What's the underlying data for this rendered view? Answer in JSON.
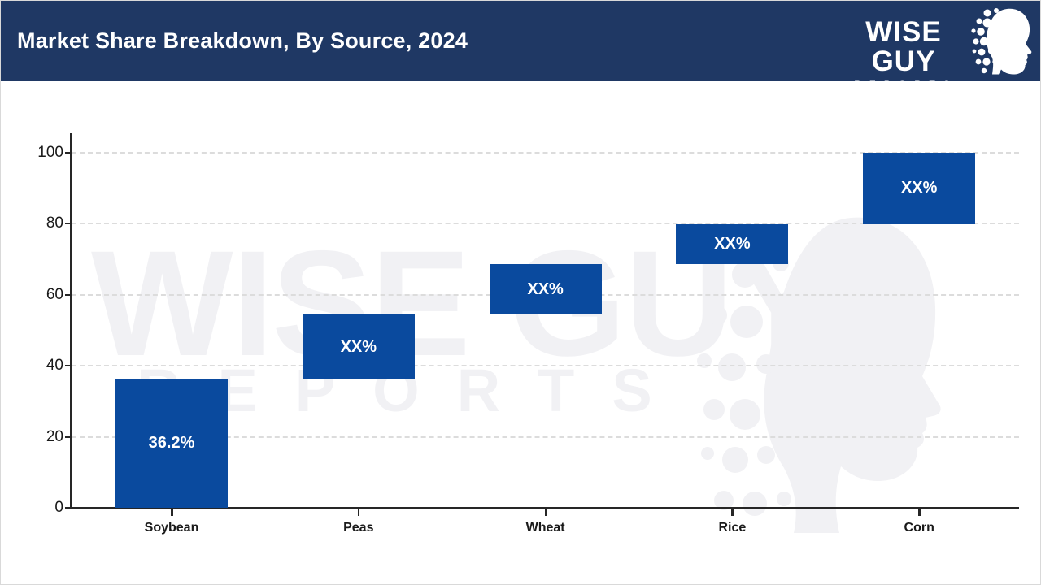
{
  "header": {
    "title": "Market Share Breakdown, By Source, 2024",
    "logo": {
      "line1": "WISE GUY",
      "line2": "REPORTS"
    }
  },
  "watermark": {
    "line1": "WISE GUY",
    "line2": "REPORTS"
  },
  "chart_data": {
    "type": "bar",
    "subtype": "waterfall-floating-bars",
    "title": "Market Share Breakdown, By Source, 2024",
    "categories": [
      "Soybean",
      "Peas",
      "Wheat",
      "Rice",
      "Corn"
    ],
    "segments": [
      {
        "category": "Soybean",
        "start": 0,
        "end": 36.2,
        "label": "36.2%"
      },
      {
        "category": "Peas",
        "start": 36.2,
        "end": 54.3,
        "label": "XX%"
      },
      {
        "category": "Wheat",
        "start": 54.3,
        "end": 68.6,
        "label": "XX%"
      },
      {
        "category": "Rice",
        "start": 68.6,
        "end": 79.8,
        "label": "XX%"
      },
      {
        "category": "Corn",
        "start": 79.8,
        "end": 100,
        "label": "XX%"
      }
    ],
    "xlabel": "",
    "ylabel": "",
    "ylim": [
      0,
      100
    ],
    "yticks": [
      0,
      20,
      40,
      60,
      80,
      100
    ],
    "grid": "horizontal-dashed",
    "legend": "none",
    "colors": {
      "bar": "#0a4a9e",
      "bar_label": "#ffffff",
      "header_bg": "#1f3864",
      "axis": "#262626",
      "gridline": "#dcdcdc",
      "watermark": "#f1f1f4"
    }
  }
}
